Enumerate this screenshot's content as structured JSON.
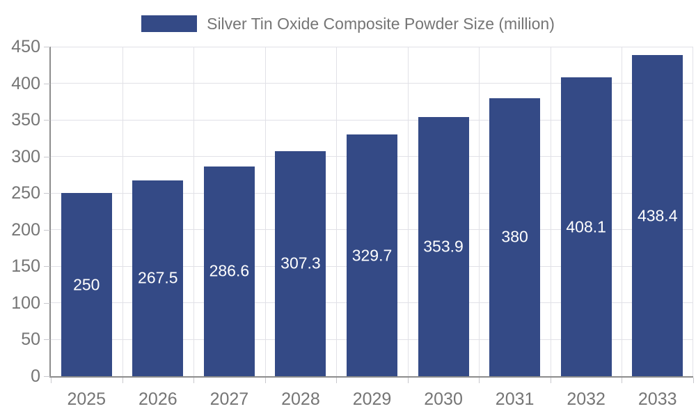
{
  "legend": {
    "label": "Silver Tin Oxide Composite Powder Size (million)"
  },
  "colors": {
    "bar": "#344a86",
    "axis_line": "#8c8c8c",
    "grid_line": "#e1e1e7",
    "tick": "#c8c8cd",
    "axis_label_text": "#757575",
    "legend_text": "#757575",
    "value_label_text": "#ffffff",
    "background": "#ffffff"
  },
  "chart_data": {
    "type": "bar",
    "title": "Silver Tin Oxide Composite Powder Size (million)",
    "series_name": "Silver Tin Oxide Composite Powder Size (million)",
    "categories": [
      "2025",
      "2026",
      "2027",
      "2028",
      "2029",
      "2030",
      "2031",
      "2032",
      "2033"
    ],
    "values": [
      250,
      267.5,
      286.6,
      307.3,
      329.7,
      353.9,
      380,
      408.1,
      438.4
    ],
    "value_labels": [
      "250",
      "267.5",
      "286.6",
      "307.3",
      "329.7",
      "353.9",
      "380",
      "408.1",
      "438.4"
    ],
    "xlabel": "",
    "ylabel": "",
    "ylim": [
      0,
      450
    ],
    "y_ticks": [
      0,
      50,
      100,
      150,
      200,
      250,
      300,
      350,
      400,
      450
    ],
    "grid": true,
    "legend_position": "top-center",
    "value_label_position": "inside-center",
    "bar_color": "#344a86"
  }
}
